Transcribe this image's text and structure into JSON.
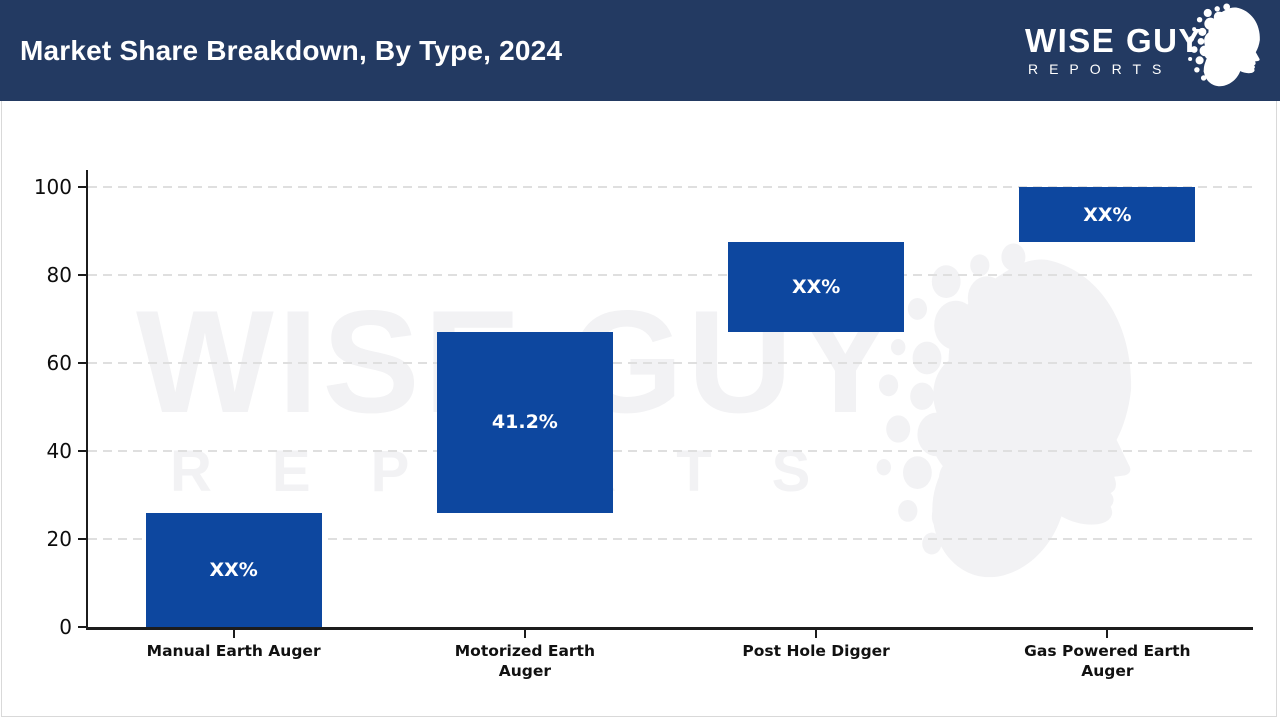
{
  "header": {
    "title": "Market Share Breakdown, By Type, 2024",
    "logo": {
      "line1": "WISE GUY",
      "line2": "REPORTS"
    }
  },
  "watermark": {
    "line1": "WISE GUY",
    "line2": "REPORTS"
  },
  "colors": {
    "header_bg": "#233a62",
    "bar": "#0d479f",
    "grid": "#dfdfdf",
    "axis": "#1c1c1c",
    "value_label": "#ffffff",
    "watermark": "#f2f2f4",
    "card_border": "#d9d9d9"
  },
  "chart_data": {
    "type": "bar",
    "subtype": "floating-waterfall",
    "title": "Market Share Breakdown, By Type, 2024",
    "categories": [
      "Manual Earth Auger",
      "Motorized Earth Auger",
      "Post Hole Digger",
      "Gas Powered Earth Auger"
    ],
    "category_lines": [
      [
        "Manual Earth Auger"
      ],
      [
        "Motorized Earth",
        "Auger"
      ],
      [
        "Post Hole Digger"
      ],
      [
        "Gas Powered Earth",
        "Auger"
      ]
    ],
    "bars": [
      {
        "category": "Manual Earth Auger",
        "start": 0,
        "end": 25.9,
        "label": "XX%"
      },
      {
        "category": "Motorized Earth Auger",
        "start": 25.9,
        "end": 67.1,
        "label": "41.2%"
      },
      {
        "category": "Post Hole Digger",
        "start": 67.1,
        "end": 87.5,
        "label": "XX%"
      },
      {
        "category": "Gas Powered Earth Auger",
        "start": 87.5,
        "end": 100,
        "label": "XX%"
      }
    ],
    "xlabel": "",
    "ylabel": "",
    "ylim": [
      0,
      100
    ],
    "yticks": [
      0,
      20,
      40,
      60,
      80,
      100
    ],
    "grid": "horizontal-dashed",
    "legend": "none"
  }
}
